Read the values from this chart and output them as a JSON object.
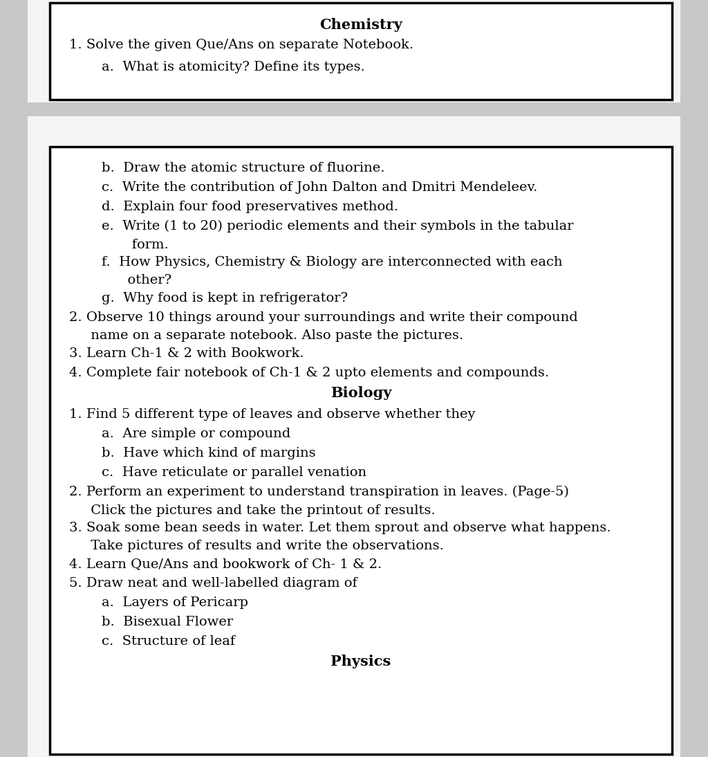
{
  "page_bg": "#c8c8c8",
  "card_bg": "#ffffff",
  "shadow_bg": "#e8e8e8",
  "text_color": "#000000",
  "font_size": 14,
  "heading_font_size": 15,
  "box1": {
    "title": "Chemistry",
    "items": [
      {
        "indent": 1,
        "text": "1. Solve the given Que/Ans on separate Notebook."
      },
      {
        "indent": 2,
        "text": "a.  What is atomicity? Define its types."
      }
    ]
  },
  "box2": {
    "items": [
      {
        "indent": 2,
        "text": "b.  Draw the atomic structure of fluorine."
      },
      {
        "indent": 2,
        "text": "c.  Write the contribution of John Dalton and Dmitri Mendeleev."
      },
      {
        "indent": 2,
        "text": "d.  Explain four food preservatives method."
      },
      {
        "indent": 2,
        "text": "e.  Write (1 to 20) periodic elements and their symbols in the tabular\n       form.",
        "wrap": true
      },
      {
        "indent": 2,
        "text": "f.  How Physics, Chemistry & Biology are interconnected with each\n      other?",
        "wrap": true
      },
      {
        "indent": 2,
        "text": "g.  Why food is kept in refrigerator?"
      },
      {
        "indent": 1,
        "text": "2. Observe 10 things around your surroundings and write their compound\n     name on a separate notebook. Also paste the pictures.",
        "wrap": true
      },
      {
        "indent": 1,
        "text": "3. Learn Ch-1 & 2 with Bookwork."
      },
      {
        "indent": 1,
        "text": "4. Complete fair notebook of Ch-1 & 2 upto elements and compounds."
      },
      {
        "indent": 0,
        "text": "Biology",
        "heading": true
      },
      {
        "indent": 1,
        "text": "1. Find 5 different type of leaves and observe whether they"
      },
      {
        "indent": 2,
        "text": "a.  Are simple or compound"
      },
      {
        "indent": 2,
        "text": "b.  Have which kind of margins"
      },
      {
        "indent": 2,
        "text": "c.  Have reticulate or parallel venation"
      },
      {
        "indent": 1,
        "text": "2. Perform an experiment to understand transpiration in leaves. (Page-5)\n     Click the pictures and take the printout of results.",
        "wrap": true
      },
      {
        "indent": 1,
        "text": "3. Soak some bean seeds in water. Let them sprout and observe what happens.\n     Take pictures of results and write the observations.",
        "wrap": true
      },
      {
        "indent": 1,
        "text": "4. Learn Que/Ans and bookwork of Ch- 1 & 2."
      },
      {
        "indent": 1,
        "text": "5. Draw neat and well-labelled diagram of"
      },
      {
        "indent": 2,
        "text": "a.  Layers of Pericarp"
      },
      {
        "indent": 2,
        "text": "b.  Bisexual Flower"
      },
      {
        "indent": 2,
        "text": "c.  Structure of leaf"
      },
      {
        "indent": 0,
        "text": "Physics",
        "heading": true
      }
    ]
  }
}
